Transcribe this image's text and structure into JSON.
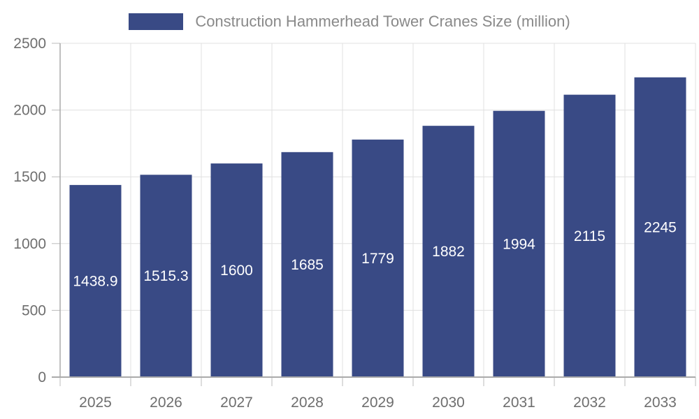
{
  "legend": {
    "label": "Construction Hammerhead Tower Cranes Size (million)"
  },
  "style": {
    "bar_color": "#394a85",
    "grid_color": "#e0e0e0",
    "axis_color": "#aaaaaa",
    "tick_color": "#bbbbbb",
    "axis_label_color": "#6e6e6e",
    "legend_text_color": "#898989",
    "value_label_color": "#ffffff",
    "background_color": "#ffffff"
  },
  "chart_data": {
    "type": "bar",
    "title": "Construction Hammerhead Tower Cranes Size (million)",
    "categories": [
      "2025",
      "2026",
      "2027",
      "2028",
      "2029",
      "2030",
      "2031",
      "2032",
      "2033"
    ],
    "values": [
      1438.9,
      1515.3,
      1600,
      1685,
      1779,
      1882,
      1994,
      2115,
      2245
    ],
    "xlabel": "",
    "ylabel": "",
    "ylim": [
      0,
      2500
    ],
    "ytick_step": 500,
    "grid": true,
    "legend_position": "top",
    "value_labels": "inside-center"
  }
}
